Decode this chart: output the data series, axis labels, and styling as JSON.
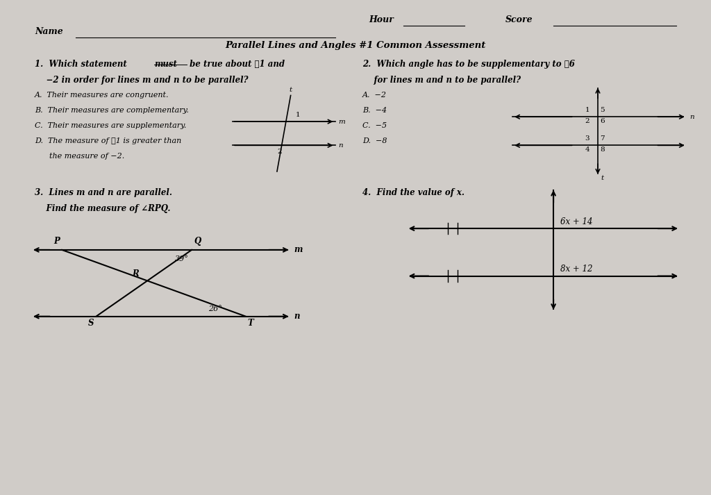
{
  "bg_color": "#d0ccc8",
  "paper_color": "#eeecea",
  "title": "Parallel Lines and Angles #1 Common Assessment",
  "q1_line1": "1.  Which statement must be true about ∡1 and",
  "q1_line2": "    −2 in order for lines m and n to be parallel?",
  "q1_must_underline": true,
  "q1_choices": [
    "A.  Their measures are congruent.",
    "B.  Their measures are complementary.",
    "C.  Their measures are supplementary.",
    "D.  The measure of ∡1 is greater than",
    "      the measure of −2."
  ],
  "q2_line1": "2.  Which angle has to be supplementary to ∡6",
  "q2_line2": "    for lines m and n to be parallel?",
  "q2_choices": [
    "A.  −2",
    "B.  −4",
    "C.  −5",
    "D.  −8"
  ],
  "q3_line1": "3.  Lines m and n are parallel.",
  "q3_line2": "    Find the measure of ∠RPQ.",
  "q3_angle1": "39°",
  "q3_angle2": "26°",
  "q4_text": "4.  Find the value of x.",
  "q4_expr1": "6x + 14",
  "q4_expr2": "8x + 12"
}
